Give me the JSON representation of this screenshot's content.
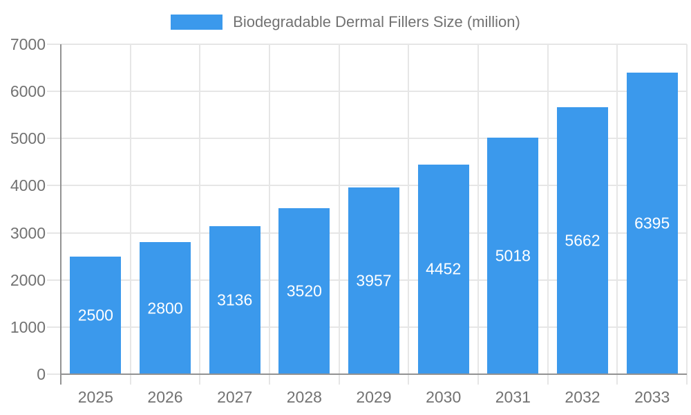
{
  "legend": {
    "label": "Biodegradable Dermal Fillers Size (million)"
  },
  "colors": {
    "bar": "#3B99EC",
    "grid": "#E6E6E6",
    "axis": "#929292",
    "text": "#727272",
    "value_label": "#FFFFFF"
  },
  "chart_data": {
    "type": "bar",
    "title": "Biodegradable Dermal Fillers Size (million)",
    "categories": [
      "2025",
      "2026",
      "2027",
      "2028",
      "2029",
      "2030",
      "2031",
      "2032",
      "2033"
    ],
    "values": [
      2500,
      2800,
      3136,
      3520,
      3957,
      4452,
      5018,
      5662,
      6395
    ],
    "xlabel": "",
    "ylabel": "",
    "ylim": [
      0,
      7000
    ],
    "yticks": [
      0,
      1000,
      2000,
      3000,
      4000,
      5000,
      6000,
      7000
    ],
    "grid": true,
    "legend_position": "top-center",
    "value_labels": "inside-center"
  }
}
